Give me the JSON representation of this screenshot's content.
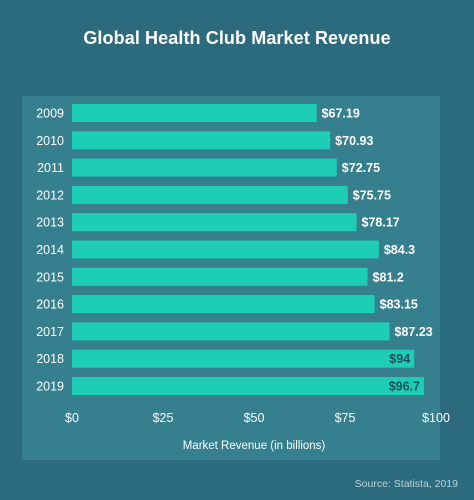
{
  "chart_data": {
    "type": "bar",
    "orientation": "horizontal",
    "title": "Global Health Club Market Revenue",
    "xlabel": "Market Revenue (in billions)",
    "ylabel": "",
    "categories": [
      "2009",
      "2010",
      "2011",
      "2012",
      "2013",
      "2014",
      "2015",
      "2016",
      "2017",
      "2018",
      "2019"
    ],
    "values": [
      67.19,
      70.93,
      72.75,
      75.75,
      78.17,
      84.3,
      81.2,
      83.15,
      87.23,
      94,
      96.7
    ],
    "value_labels": [
      "$67.19",
      "$70.93",
      "$72.75",
      "$75.75",
      "$78.17",
      "$84.3",
      "$81.2",
      "$83.15",
      "$87.23",
      "$94",
      "$96.7"
    ],
    "xlim": [
      0,
      100
    ],
    "x_ticks": [
      0,
      25,
      50,
      75,
      100
    ],
    "x_tick_labels": [
      "$0",
      "$25",
      "$50",
      "$75",
      "$100"
    ],
    "grid": false,
    "legend": "none",
    "bar_color": "#1dcdb6",
    "background_color": "#2c6b7e",
    "panel_color": "#357f8f"
  },
  "source": "Source: Statista, 2019"
}
